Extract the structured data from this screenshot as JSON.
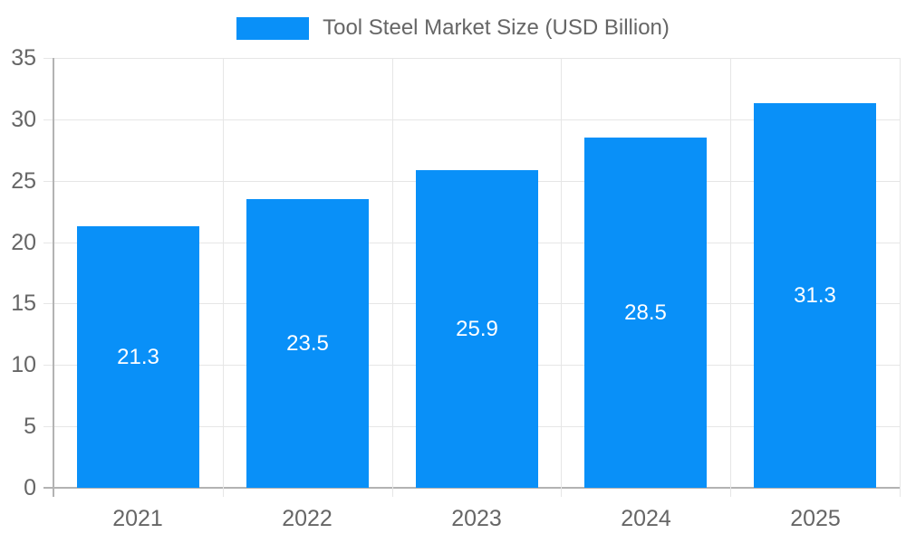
{
  "legend": {
    "label": "Tool Steel Market Size (USD Billion)"
  },
  "chart_data": {
    "type": "bar",
    "title": "Tool Steel Market Size (USD Billion)",
    "categories": [
      "2021",
      "2022",
      "2023",
      "2024",
      "2025"
    ],
    "series": [
      {
        "name": "Tool Steel Market Size (USD Billion)",
        "values": [
          21.3,
          23.5,
          25.9,
          28.5,
          31.3
        ],
        "value_labels": [
          "21.3",
          "23.5",
          "25.9",
          "28.5",
          "31.3"
        ]
      }
    ],
    "xlabel": "",
    "ylabel": "",
    "ylim": [
      0,
      35
    ],
    "yticks": [
      0,
      5,
      10,
      15,
      20,
      25,
      30,
      35
    ],
    "grid": true,
    "legend_position": "top-center",
    "value_labels_position": "inside-middle",
    "colors": {
      "bar": "#0990f8",
      "gridline": "#e6e6e6",
      "axis_line": "#b3b3b3",
      "tick_label": "#666666",
      "value_label": "#ffffff",
      "background": "#ffffff"
    }
  }
}
